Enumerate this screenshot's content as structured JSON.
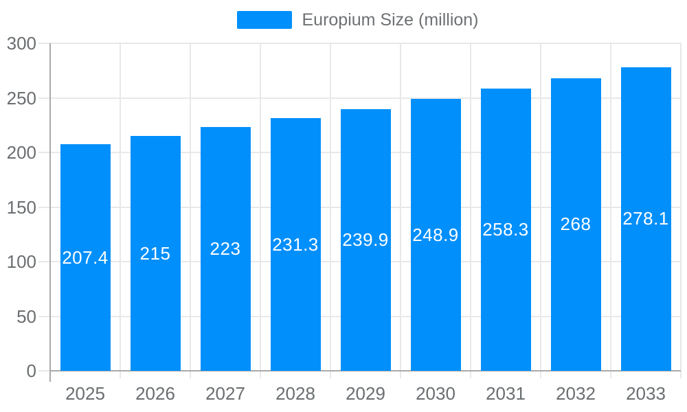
{
  "chart_data": {
    "type": "bar",
    "legend": "Europium Size (million)",
    "legend_position": "top",
    "categories": [
      "2025",
      "2026",
      "2027",
      "2028",
      "2029",
      "2030",
      "2031",
      "2032",
      "2033"
    ],
    "series": [
      {
        "name": "Europium Size (million)",
        "values": [
          207.4,
          215,
          223,
          231.3,
          239.9,
          248.9,
          258.3,
          268,
          278.1
        ]
      }
    ],
    "value_labels": [
      "207.4",
      "215",
      "223",
      "231.3",
      "239.9",
      "248.9",
      "258.3",
      "268",
      "278.1"
    ],
    "xlabel": "",
    "ylabel": "",
    "ylim": [
      0,
      300
    ],
    "y_ticks": [
      0,
      50,
      100,
      150,
      200,
      250,
      300
    ],
    "grid": true,
    "colors": {
      "bar": "#008FFB",
      "value_label": "#FFFFFF",
      "axis_label": "#6A6E70",
      "grid_line": "#E8E8E8",
      "axis_line": "#A9A9A9",
      "background": "#FFFFFF"
    }
  }
}
